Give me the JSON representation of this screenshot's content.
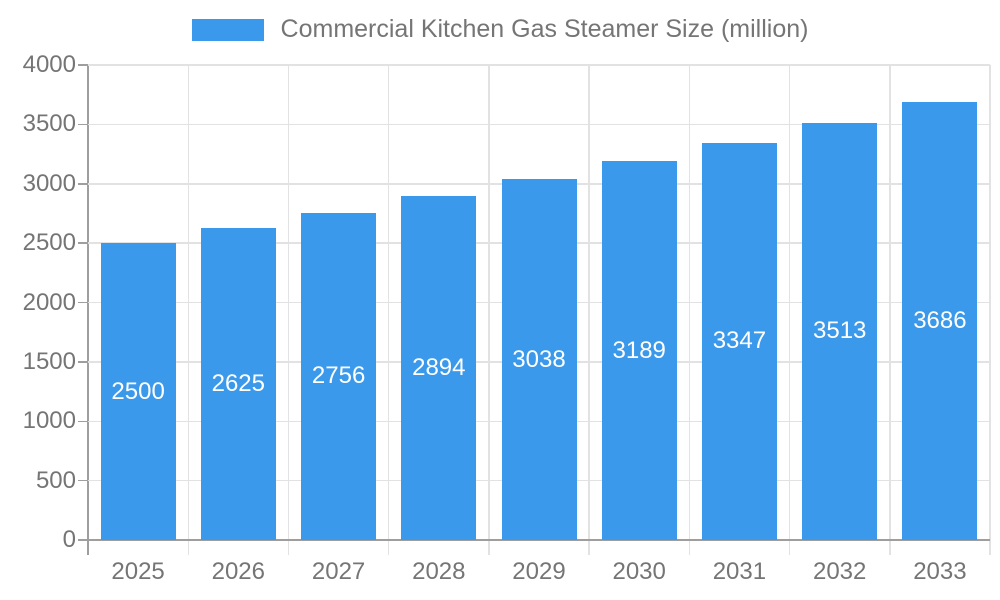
{
  "legend": {
    "label": "Commercial Kitchen Gas Steamer Size (million)"
  },
  "chart_data": {
    "type": "bar",
    "title": "Commercial Kitchen Gas Steamer Size (million)",
    "categories": [
      "2025",
      "2026",
      "2027",
      "2028",
      "2029",
      "2030",
      "2031",
      "2032",
      "2033"
    ],
    "values": [
      2500,
      2625,
      2756,
      2894,
      3038,
      3189,
      3347,
      3513,
      3686
    ],
    "xlabel": "",
    "ylabel": "",
    "ylim": [
      0,
      4000
    ],
    "yticks": [
      0,
      500,
      1000,
      1500,
      2000,
      2500,
      3000,
      3500,
      4000
    ],
    "grid": true,
    "legend_position": "top",
    "value_labels": "inside-center",
    "colors": {
      "bar": "#3b99ec",
      "value_label": "#ffffff",
      "axis_text": "#757575",
      "gridline": "#e2e2e2",
      "axis_line": "#9e9e9e"
    }
  }
}
